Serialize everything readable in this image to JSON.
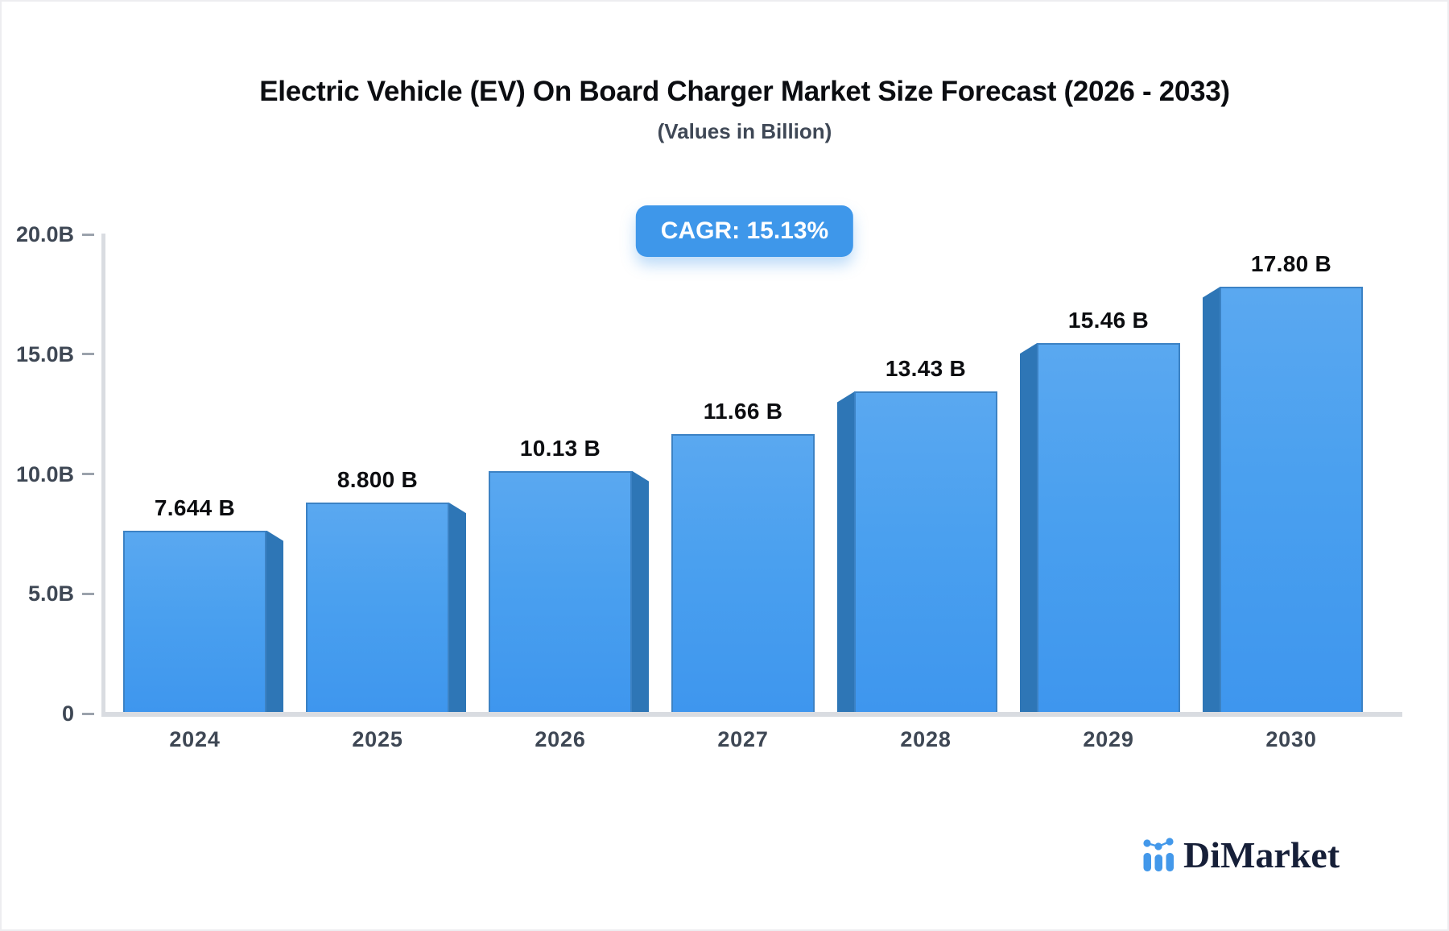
{
  "header": {
    "title": "Electric Vehicle (EV) On Board Charger Market Size Forecast (2026 - 2033)",
    "subtitle": "(Values in Billion)"
  },
  "badge": {
    "label": "CAGR: 15.13%",
    "bg_color": "#3e97ea",
    "text_color": "#ffffff"
  },
  "chart_data": {
    "type": "bar",
    "title": "Electric Vehicle (EV) On Board Charger Market Size Forecast (2026 - 2033)",
    "subtitle": "(Values in Billion)",
    "cagr_label": "CAGR: 15.13%",
    "categories": [
      "2024",
      "2025",
      "2026",
      "2027",
      "2028",
      "2029",
      "2030"
    ],
    "values": [
      7.644,
      8.8,
      10.13,
      11.66,
      13.43,
      15.46,
      17.8
    ],
    "value_labels": [
      "7.644 B",
      "8.800 B",
      "10.13 B",
      "11.66 B",
      "13.43 B",
      "15.46 B",
      "17.80 B"
    ],
    "extrude": [
      "right",
      "right",
      "right",
      "none",
      "left",
      "left",
      "left"
    ],
    "xlabel": "",
    "ylabel": "",
    "ylim": [
      0,
      20
    ],
    "ytick_values": [
      20,
      15,
      10,
      5,
      0
    ],
    "ytick_labels": [
      "20.0B",
      "15.0B",
      "10.0B",
      "5.0B",
      "0"
    ],
    "grid": false,
    "legend_position": "none",
    "bar_face_top_color": "#5aa8f0",
    "bar_face_bottom_color": "#3e96ee",
    "bar_side_color": "#2e76b6",
    "bar_border_color": "#3c82c4",
    "axis_color": "#d9dce1",
    "tick_text_color": "#3e4754"
  },
  "footer": {
    "brand": "DiMarket",
    "logo_icon": "mini-bar-chart-icon",
    "brand_color": "#161f38",
    "icon_color": "#4398ea"
  }
}
